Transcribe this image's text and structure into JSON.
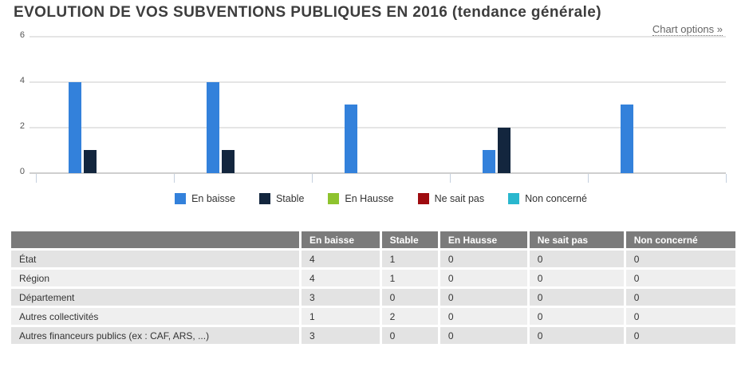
{
  "header": {
    "title": "EVOLUTION DE VOS SUBVENTIONS PUBLIQUES EN 2016 (tendance générale)",
    "chart_options_label": "Chart options »"
  },
  "colors": {
    "en_baisse": "#3381db",
    "stable": "#13263e",
    "en_hausse": "#8ec32e",
    "ne_sait_pas": "#9e0b0f",
    "non_concerne": "#29b7ce",
    "header_bg": "#7b7b7b",
    "row_odd_bg": "#e3e3e3",
    "row_even_bg": "#efefef"
  },
  "chart_data": {
    "type": "bar",
    "title": "EVOLUTION DE VOS SUBVENTIONS PUBLIQUES EN 2016 (tendance générale)",
    "categories": [
      "État",
      "Région",
      "Département",
      "Autres collectivités",
      "Autres financeurs publics (ex : CAF, ARS, ...)"
    ],
    "series": [
      {
        "name": "En baisse",
        "color": "#3381db",
        "values": [
          4,
          4,
          3,
          1,
          3
        ]
      },
      {
        "name": "Stable",
        "color": "#13263e",
        "values": [
          1,
          1,
          0,
          2,
          0
        ]
      },
      {
        "name": "En Hausse",
        "color": "#8ec32e",
        "values": [
          0,
          0,
          0,
          0,
          0
        ]
      },
      {
        "name": "Ne sait pas",
        "color": "#9e0b0f",
        "values": [
          0,
          0,
          0,
          0,
          0
        ]
      },
      {
        "name": "Non concerné",
        "color": "#29b7ce",
        "values": [
          0,
          0,
          0,
          0,
          0
        ]
      }
    ],
    "xlabel": "",
    "ylabel": "",
    "ylim": [
      0,
      6
    ],
    "yticks": [
      6,
      4,
      2,
      0
    ],
    "grid": true,
    "legend_position": "bottom"
  },
  "table": {
    "columns": [
      "",
      "En baisse",
      "Stable",
      "En Hausse",
      "Ne sait pas",
      "Non concerné"
    ],
    "rows": [
      {
        "label": "État",
        "values": [
          4,
          1,
          0,
          0,
          0
        ]
      },
      {
        "label": "Région",
        "values": [
          4,
          1,
          0,
          0,
          0
        ]
      },
      {
        "label": "Département",
        "values": [
          3,
          0,
          0,
          0,
          0
        ]
      },
      {
        "label": "Autres collectivités",
        "values": [
          1,
          2,
          0,
          0,
          0
        ]
      },
      {
        "label": "Autres financeurs publics (ex : CAF, ARS, ...)",
        "values": [
          3,
          0,
          0,
          0,
          0
        ]
      }
    ]
  }
}
